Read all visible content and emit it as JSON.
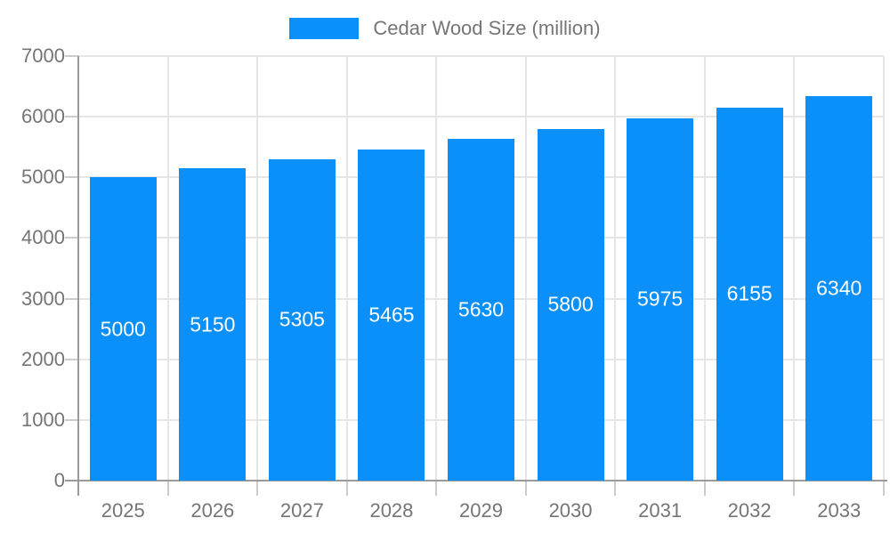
{
  "legend": {
    "label": "Cedar Wood Size (million)"
  },
  "colors": {
    "bar": "#0a90f8",
    "grid": "#e6e6e6",
    "tick": "#cccccc",
    "axis": "#9a9a9a",
    "text": "#757575",
    "bar_label": "#ffffff"
  },
  "chart_data": {
    "type": "bar",
    "title": "Cedar Wood Size (million)",
    "categories": [
      "2025",
      "2026",
      "2027",
      "2028",
      "2029",
      "2030",
      "2031",
      "2032",
      "2033"
    ],
    "values": [
      5000,
      5150,
      5305,
      5465,
      5630,
      5800,
      5975,
      6155,
      6340
    ],
    "bar_labels": [
      "5000",
      "5150",
      "5305",
      "5465",
      "5630",
      "5800",
      "5975",
      "6155",
      "6340"
    ],
    "xlabel": "",
    "ylabel": "",
    "ylim": [
      0,
      7000
    ],
    "yticks": [
      0,
      1000,
      2000,
      3000,
      4000,
      5000,
      6000,
      7000
    ],
    "grid": true,
    "legend_position": "top"
  }
}
